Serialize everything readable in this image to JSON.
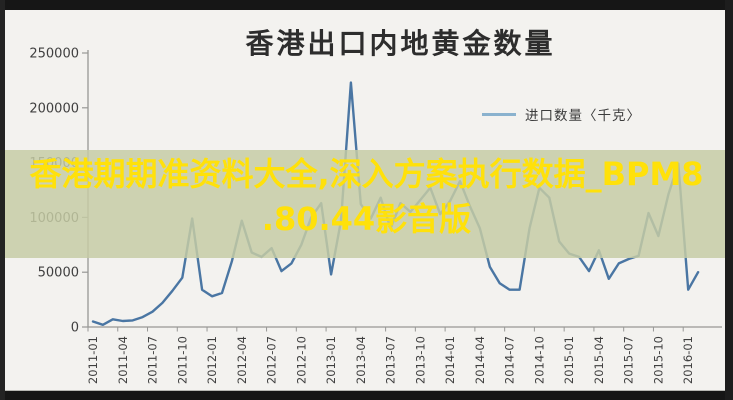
{
  "title": "香港出口内地黄金数量",
  "legend": {
    "label": "进口数量〈千克〉"
  },
  "overlay": {
    "line1": "香港期期准资料大全,深入方案执行数据_BPM8",
    "line2": ".80.44影音版"
  },
  "colors": {
    "line": "#4a76a3",
    "legend_line": "#8ab2ce",
    "band": "#c6cca5",
    "overlay_text": "#ffe10a",
    "frame_bar": "#161616",
    "axis": "#979795",
    "tick_label": "#3f3f3f",
    "title": "#2d2d2d",
    "background": "#f3f2ef"
  },
  "chart_data": {
    "type": "line",
    "title": "香港出口内地黄金数量",
    "ylabel": "",
    "xlabel": "",
    "grid": false,
    "legend_position": "upper-right",
    "legend_entries": [
      "进口数量〈千克〉"
    ],
    "ylim": [
      0,
      250000
    ],
    "yticks": [
      250000,
      200000,
      150000,
      100000,
      50000,
      0
    ],
    "x_tick_labels": [
      "2011-01",
      "2011-04",
      "2011-07",
      "2011-10",
      "2012-01",
      "2012-04",
      "2012-07",
      "2012-10",
      "2013-01",
      "2013-04",
      "2013-07",
      "2013-10",
      "2014-01",
      "2014-04",
      "2014-07",
      "2014-10",
      "2015-01",
      "2015-04",
      "2015-07",
      "2015-10",
      "2016-01"
    ],
    "x": [
      "2011-01",
      "2011-02",
      "2011-03",
      "2011-04",
      "2011-05",
      "2011-06",
      "2011-07",
      "2011-08",
      "2011-09",
      "2011-10",
      "2011-11",
      "2011-12",
      "2012-01",
      "2012-02",
      "2012-03",
      "2012-04",
      "2012-05",
      "2012-06",
      "2012-07",
      "2012-08",
      "2012-09",
      "2012-10",
      "2012-11",
      "2012-12",
      "2013-01",
      "2013-02",
      "2013-03",
      "2013-04",
      "2013-05",
      "2013-06",
      "2013-07",
      "2013-08",
      "2013-09",
      "2013-10",
      "2013-11",
      "2013-12",
      "2014-01",
      "2014-02",
      "2014-03",
      "2014-04",
      "2014-05",
      "2014-06",
      "2014-07",
      "2014-08",
      "2014-09",
      "2014-10",
      "2014-11",
      "2014-12",
      "2015-01",
      "2015-02",
      "2015-03",
      "2015-04",
      "2015-05",
      "2015-06",
      "2015-07",
      "2015-08",
      "2015-09",
      "2015-10",
      "2015-11",
      "2015-12",
      "2016-01",
      "2016-02"
    ],
    "series": [
      {
        "name": "进口数量〈千克〉",
        "values": [
          5000,
          2000,
          7000,
          5500,
          6000,
          9000,
          14000,
          22000,
          33000,
          45000,
          99000,
          34000,
          28000,
          31000,
          60000,
          97000,
          68000,
          64000,
          72000,
          51000,
          58000,
          75000,
          100000,
          113000,
          48000,
          97000,
          223000,
          112000,
          99000,
          118000,
          90000,
          113000,
          105000,
          116000,
          127000,
          103000,
          115000,
          133000,
          110000,
          90000,
          55000,
          40000,
          34000,
          34000,
          90000,
          127000,
          118000,
          78000,
          67000,
          64000,
          51000,
          70000,
          44000,
          58000,
          62000,
          65000,
          104000,
          83000,
          121000,
          149000,
          34000,
          50000
        ]
      }
    ]
  }
}
